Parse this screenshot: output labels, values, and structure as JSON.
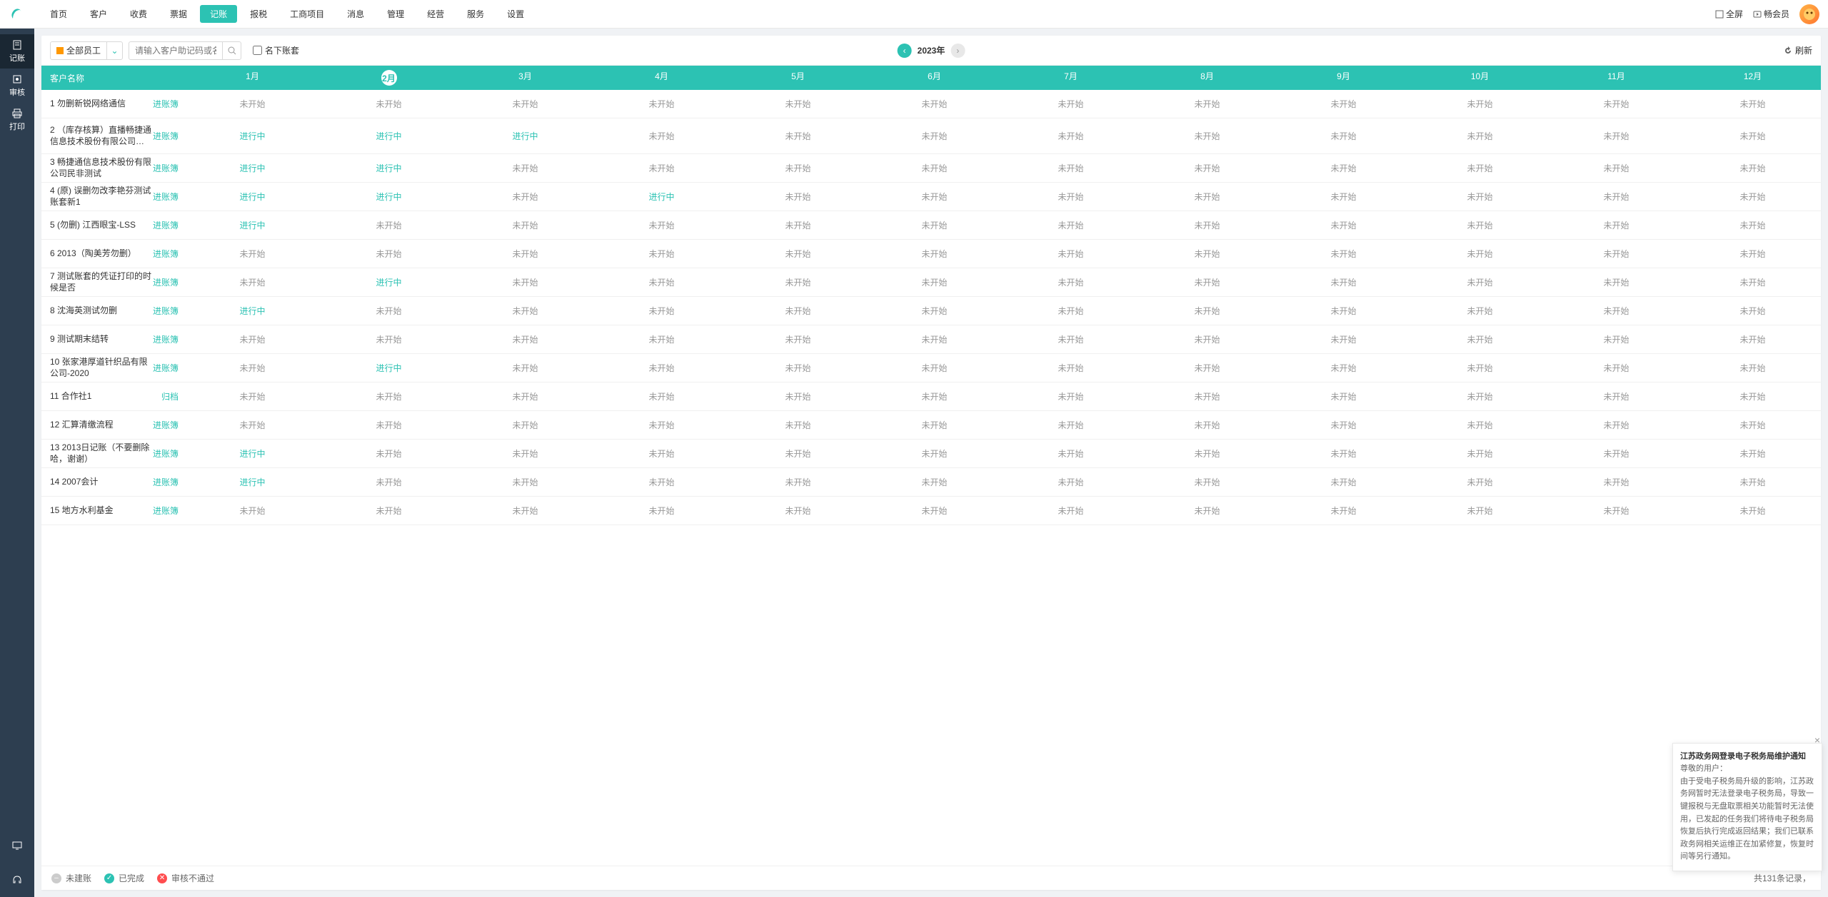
{
  "nav": {
    "items": [
      "首页",
      "客户",
      "收费",
      "票据",
      "记账",
      "报税",
      "工商项目",
      "消息",
      "管理",
      "经营",
      "服务",
      "设置"
    ],
    "active_index": 4,
    "fullscreen": "全屏",
    "member": "畅会员"
  },
  "sidebar": {
    "items": [
      {
        "label": "记账",
        "icon": "ledger"
      },
      {
        "label": "审核",
        "icon": "review"
      },
      {
        "label": "打印",
        "icon": "print"
      }
    ],
    "active_index": 0,
    "bottom": [
      {
        "icon": "monitor"
      },
      {
        "icon": "headset"
      }
    ]
  },
  "toolbar": {
    "employee_select": "全部员工",
    "search_placeholder": "请输入客户助记码或名称",
    "checkbox_label": "名下账套",
    "year": "2023年",
    "refresh": "刷新"
  },
  "table": {
    "header_name": "客户名称",
    "months": [
      "1月",
      "2月",
      "3月",
      "4月",
      "5月",
      "6月",
      "7月",
      "8月",
      "9月",
      "10月",
      "11月",
      "12月"
    ],
    "active_month_index": 1,
    "link_default": "进账簿",
    "link_archive": "归档",
    "status_labels": {
      "notstarted": "未开始",
      "progress": "进行中"
    },
    "rows": [
      {
        "idx": "1",
        "name": "勿删新锐网络通信",
        "link": "进账簿",
        "cells": [
          "notstarted",
          "notstarted",
          "notstarted",
          "notstarted",
          "notstarted",
          "notstarted",
          "notstarted",
          "notstarted",
          "notstarted",
          "notstarted",
          "notstarted",
          "notstarted"
        ]
      },
      {
        "idx": "2",
        "name": "（库存核算）直播畅捷通信息技术股份有限公司chanjet（原账套）",
        "link": "进账簿",
        "tall": true,
        "cells": [
          "progress",
          "progress",
          "progress",
          "notstarted",
          "notstarted",
          "notstarted",
          "notstarted",
          "notstarted",
          "notstarted",
          "notstarted",
          "notstarted",
          "notstarted"
        ]
      },
      {
        "idx": "3",
        "name": "畅捷通信息技术股份有限公司民非测试",
        "link": "进账簿",
        "cells": [
          "progress",
          "progress",
          "notstarted",
          "notstarted",
          "notstarted",
          "notstarted",
          "notstarted",
          "notstarted",
          "notstarted",
          "notstarted",
          "notstarted",
          "notstarted"
        ]
      },
      {
        "idx": "4",
        "name": "(原) 误删勿改李艳芬测试账套新1",
        "link": "进账簿",
        "cells": [
          "progress",
          "progress",
          "notstarted",
          "progress",
          "notstarted",
          "notstarted",
          "notstarted",
          "notstarted",
          "notstarted",
          "notstarted",
          "notstarted",
          "notstarted"
        ]
      },
      {
        "idx": "5",
        "name": "(勿删) 江西眼宝-LSS",
        "link": "进账簿",
        "cells": [
          "progress",
          "notstarted",
          "notstarted",
          "notstarted",
          "notstarted",
          "notstarted",
          "notstarted",
          "notstarted",
          "notstarted",
          "notstarted",
          "notstarted",
          "notstarted"
        ]
      },
      {
        "idx": "6",
        "name": "2013（陶美芳勿删）",
        "link": "进账簿",
        "cells": [
          "notstarted",
          "notstarted",
          "notstarted",
          "notstarted",
          "notstarted",
          "notstarted",
          "notstarted",
          "notstarted",
          "notstarted",
          "notstarted",
          "notstarted",
          "notstarted"
        ]
      },
      {
        "idx": "7",
        "name": "测试账套的凭证打印的时候是否",
        "link": "进账簿",
        "cells": [
          "notstarted",
          "progress",
          "notstarted",
          "notstarted",
          "notstarted",
          "notstarted",
          "notstarted",
          "notstarted",
          "notstarted",
          "notstarted",
          "notstarted",
          "notstarted"
        ]
      },
      {
        "idx": "8",
        "name": "沈海英测试勿删",
        "link": "进账簿",
        "cells": [
          "progress",
          "notstarted",
          "notstarted",
          "notstarted",
          "notstarted",
          "notstarted",
          "notstarted",
          "notstarted",
          "notstarted",
          "notstarted",
          "notstarted",
          "notstarted"
        ]
      },
      {
        "idx": "9",
        "name": "测试期末结转",
        "link": "进账簿",
        "cells": [
          "notstarted",
          "notstarted",
          "notstarted",
          "notstarted",
          "notstarted",
          "notstarted",
          "notstarted",
          "notstarted",
          "notstarted",
          "notstarted",
          "notstarted",
          "notstarted"
        ]
      },
      {
        "idx": "10",
        "name": "张家港厚道针织品有限公司-2020",
        "link": "进账簿",
        "cells": [
          "notstarted",
          "progress",
          "notstarted",
          "notstarted",
          "notstarted",
          "notstarted",
          "notstarted",
          "notstarted",
          "notstarted",
          "notstarted",
          "notstarted",
          "notstarted"
        ]
      },
      {
        "idx": "11",
        "name": "合作社1",
        "link": "归档",
        "cells": [
          "notstarted",
          "notstarted",
          "notstarted",
          "notstarted",
          "notstarted",
          "notstarted",
          "notstarted",
          "notstarted",
          "notstarted",
          "notstarted",
          "notstarted",
          "notstarted"
        ]
      },
      {
        "idx": "12",
        "name": "汇算清缴流程",
        "link": "进账簿",
        "cells": [
          "notstarted",
          "notstarted",
          "notstarted",
          "notstarted",
          "notstarted",
          "notstarted",
          "notstarted",
          "notstarted",
          "notstarted",
          "notstarted",
          "notstarted",
          "notstarted"
        ]
      },
      {
        "idx": "13",
        "name": "2013日记账（不要删除哈，谢谢）",
        "link": "进账簿",
        "cells": [
          "progress",
          "notstarted",
          "notstarted",
          "notstarted",
          "notstarted",
          "notstarted",
          "notstarted",
          "notstarted",
          "notstarted",
          "notstarted",
          "notstarted",
          "notstarted"
        ]
      },
      {
        "idx": "14",
        "name": "2007会计",
        "link": "进账簿",
        "cells": [
          "progress",
          "notstarted",
          "notstarted",
          "notstarted",
          "notstarted",
          "notstarted",
          "notstarted",
          "notstarted",
          "notstarted",
          "notstarted",
          "notstarted",
          "notstarted"
        ]
      },
      {
        "idx": "15",
        "name": "地方水利基金",
        "link": "进账簿",
        "cells": [
          "notstarted",
          "notstarted",
          "notstarted",
          "notstarted",
          "notstarted",
          "notstarted",
          "notstarted",
          "notstarted",
          "notstarted",
          "notstarted",
          "notstarted",
          "notstarted"
        ]
      }
    ]
  },
  "footer": {
    "legends": [
      {
        "label": "未建账",
        "color": "#cccccc",
        "symbol": "–"
      },
      {
        "label": "已完成",
        "color": "#2cc2b3",
        "symbol": "✓"
      },
      {
        "label": "审核不通过",
        "color": "#ff4d4f",
        "symbol": "✕"
      }
    ],
    "pagination": "共131条记录，"
  },
  "notice": {
    "title": "江苏政务网登录电子税务局维护通知",
    "line1": "尊敬的用户：",
    "body": "由于受电子税务局升级的影响，江苏政务网暂时无法登录电子税务局，导致一键报税与无盘取票相关功能暂时无法使用，已发起的任务我们将待电子税务局恢复后执行完成返回结果；我们已联系政务网相关运维正在加紧修复，恢复时间等另行通知。"
  },
  "colors": {
    "primary": "#2cc2b3",
    "sidebar_bg": "#2d3e50",
    "text_muted": "#999999"
  }
}
